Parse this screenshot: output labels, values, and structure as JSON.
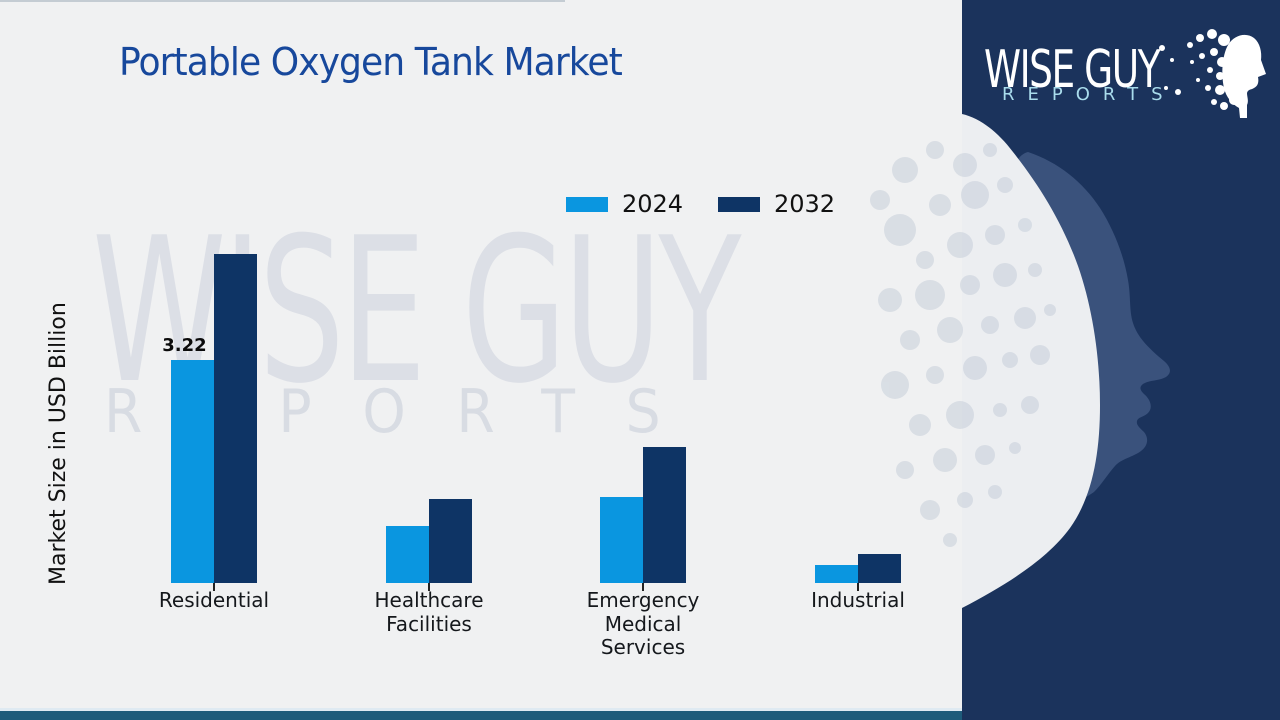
{
  "page": {
    "title": "Portable Oxygen Tank Market",
    "title_color": "#17489c",
    "background_color": "#f0f1f2"
  },
  "branding": {
    "logo_line1": "WISE GUY",
    "logo_line2": "REPORTS",
    "panel_color": "#1b335c",
    "face_silhouette_color": "#3a527c",
    "head_shape_color": "#eceef1",
    "accent_strip_color": "#1e5b7a"
  },
  "watermark": {
    "line1": "WISE GUY",
    "line2": "REPORTS"
  },
  "chart_data": {
    "type": "bar",
    "title": "Portable Oxygen Tank Market",
    "xlabel": "",
    "ylabel": "Market Size in USD Billion",
    "categories": [
      "Residential",
      "Healthcare\nFacilities",
      "Emergency\nMedical\nServices",
      "Industrial"
    ],
    "series": [
      {
        "name": "2024",
        "color": "#0a96e0",
        "values": [
          3.22,
          0.82,
          1.24,
          0.26
        ]
      },
      {
        "name": "2032",
        "color": "#0e3465",
        "values": [
          4.75,
          1.22,
          1.96,
          0.42
        ]
      }
    ],
    "data_labels": [
      {
        "series_index": 0,
        "category_index": 0,
        "text": "3.22"
      }
    ],
    "ylim": [
      0,
      5
    ],
    "grid": false,
    "legend_position": "top",
    "axis_visible": false
  }
}
